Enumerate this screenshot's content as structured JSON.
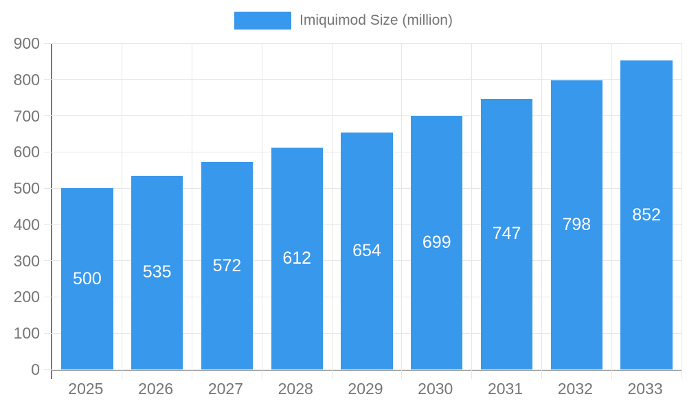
{
  "legend": {
    "label": "Imiquimod Size (million)"
  },
  "chart_data": {
    "type": "bar",
    "title": "Imiquimod Size (million)",
    "categories": [
      "2025",
      "2026",
      "2027",
      "2028",
      "2029",
      "2030",
      "2031",
      "2032",
      "2033"
    ],
    "series": [
      {
        "name": "Imiquimod Size (million)",
        "values": [
          500,
          535,
          572,
          612,
          654,
          699,
          747,
          798,
          852
        ]
      }
    ],
    "bar_labels": [
      "500",
      "535",
      "572",
      "612",
      "654",
      "699",
      "747",
      "798",
      "852"
    ],
    "xlabel": "",
    "ylabel": "",
    "ylim": [
      0,
      900
    ],
    "y_ticks": [
      0,
      100,
      200,
      300,
      400,
      500,
      600,
      700,
      800,
      900
    ],
    "grid": true,
    "legend_position": "top"
  },
  "colors": {
    "background": "#ffffff",
    "bar": "#3898ec",
    "bar_label": "#ffffff",
    "grid_line": "#e6e6e6",
    "axis_text": "#757575",
    "y_axis_line": "#777777",
    "x_axis_line": "#9e9e9e",
    "legend_text": "#757575"
  }
}
